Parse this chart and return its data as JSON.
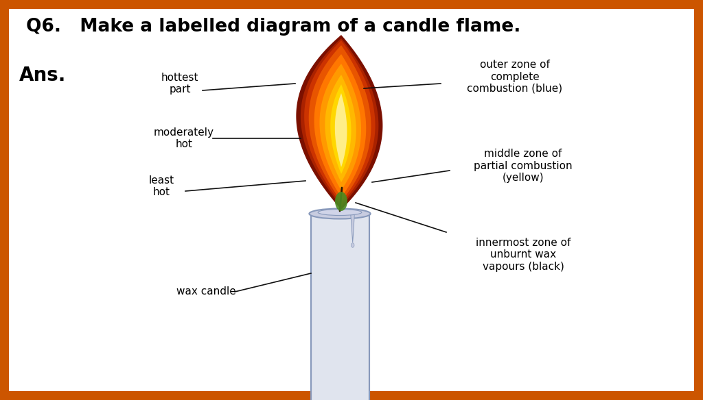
{
  "title": "Q6.   Make a labelled diagram of a candle flame.",
  "ans_label": "Ans.",
  "bg_color": "#FFFFFF",
  "border_color": "#CC5500",
  "title_fontsize": 19,
  "ans_fontsize": 20,
  "label_fontsize": 11,
  "labels": {
    "hottest_part": "hottest\npart",
    "moderately_hot": "moderately\nhot",
    "least_hot": "least\nhot",
    "wax_candle": "wax candle",
    "outer_zone": "outer zone of\ncomplete\ncombustion (blue)",
    "middle_zone": "middle zone of\npartial combustion\n(yellow)",
    "innermost_zone": "innermost zone of\nunburnt wax\nvapours (black)"
  },
  "candle_color": "#E0E4EE",
  "candle_edge_color": "#8899BB",
  "wax_color": "#C8CCE0",
  "flame_dark_red": "#8B1500",
  "flame_red": "#CC2200",
  "flame_orange": "#FF7700",
  "flame_yellow": "#FFD700",
  "flame_green": "#4A8A20",
  "wick_color": "#2a1a00",
  "line_color": "#111111"
}
